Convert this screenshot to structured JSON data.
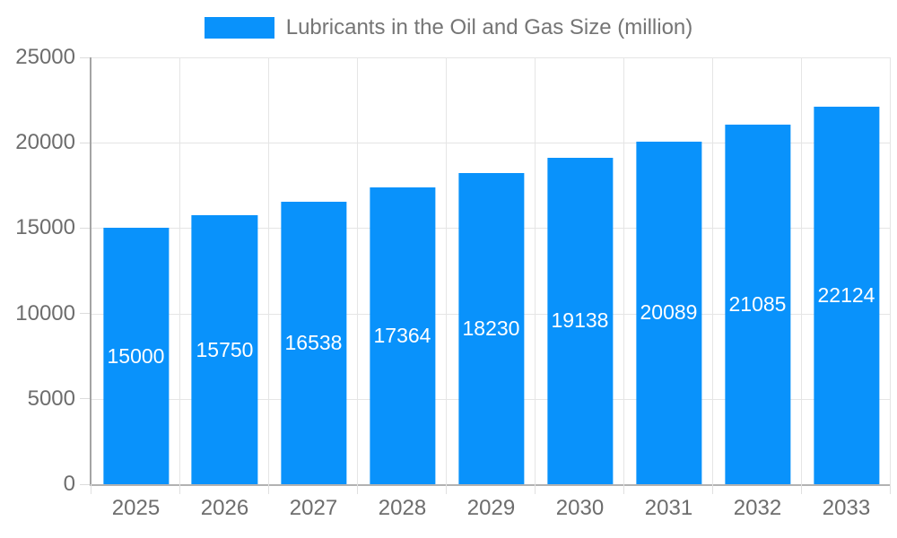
{
  "legend": {
    "label": "Lubricants in the Oil and Gas Size (million)"
  },
  "colors": {
    "bar": "#0992fb",
    "grid": "#e5e5e5",
    "axis": "#a4a4a4",
    "tick_label_text": "#6d6d6d",
    "legend_text": "#757575",
    "bar_label_text": "#ffffff",
    "background": "#ffffff"
  },
  "chart_data": {
    "type": "bar",
    "title": "",
    "xlabel": "",
    "ylabel": "",
    "series_name": "Lubricants in the Oil and Gas Size (million)",
    "categories": [
      "2025",
      "2026",
      "2027",
      "2028",
      "2029",
      "2030",
      "2031",
      "2032",
      "2033"
    ],
    "values": [
      15000,
      15750,
      16538,
      17364,
      18230,
      19138,
      20089,
      21085,
      22124
    ],
    "ylim": [
      0,
      25000
    ],
    "yticks": [
      0,
      5000,
      10000,
      15000,
      20000,
      25000
    ],
    "grid": true,
    "legend_position": "top",
    "bar_labels": "inside-center"
  }
}
